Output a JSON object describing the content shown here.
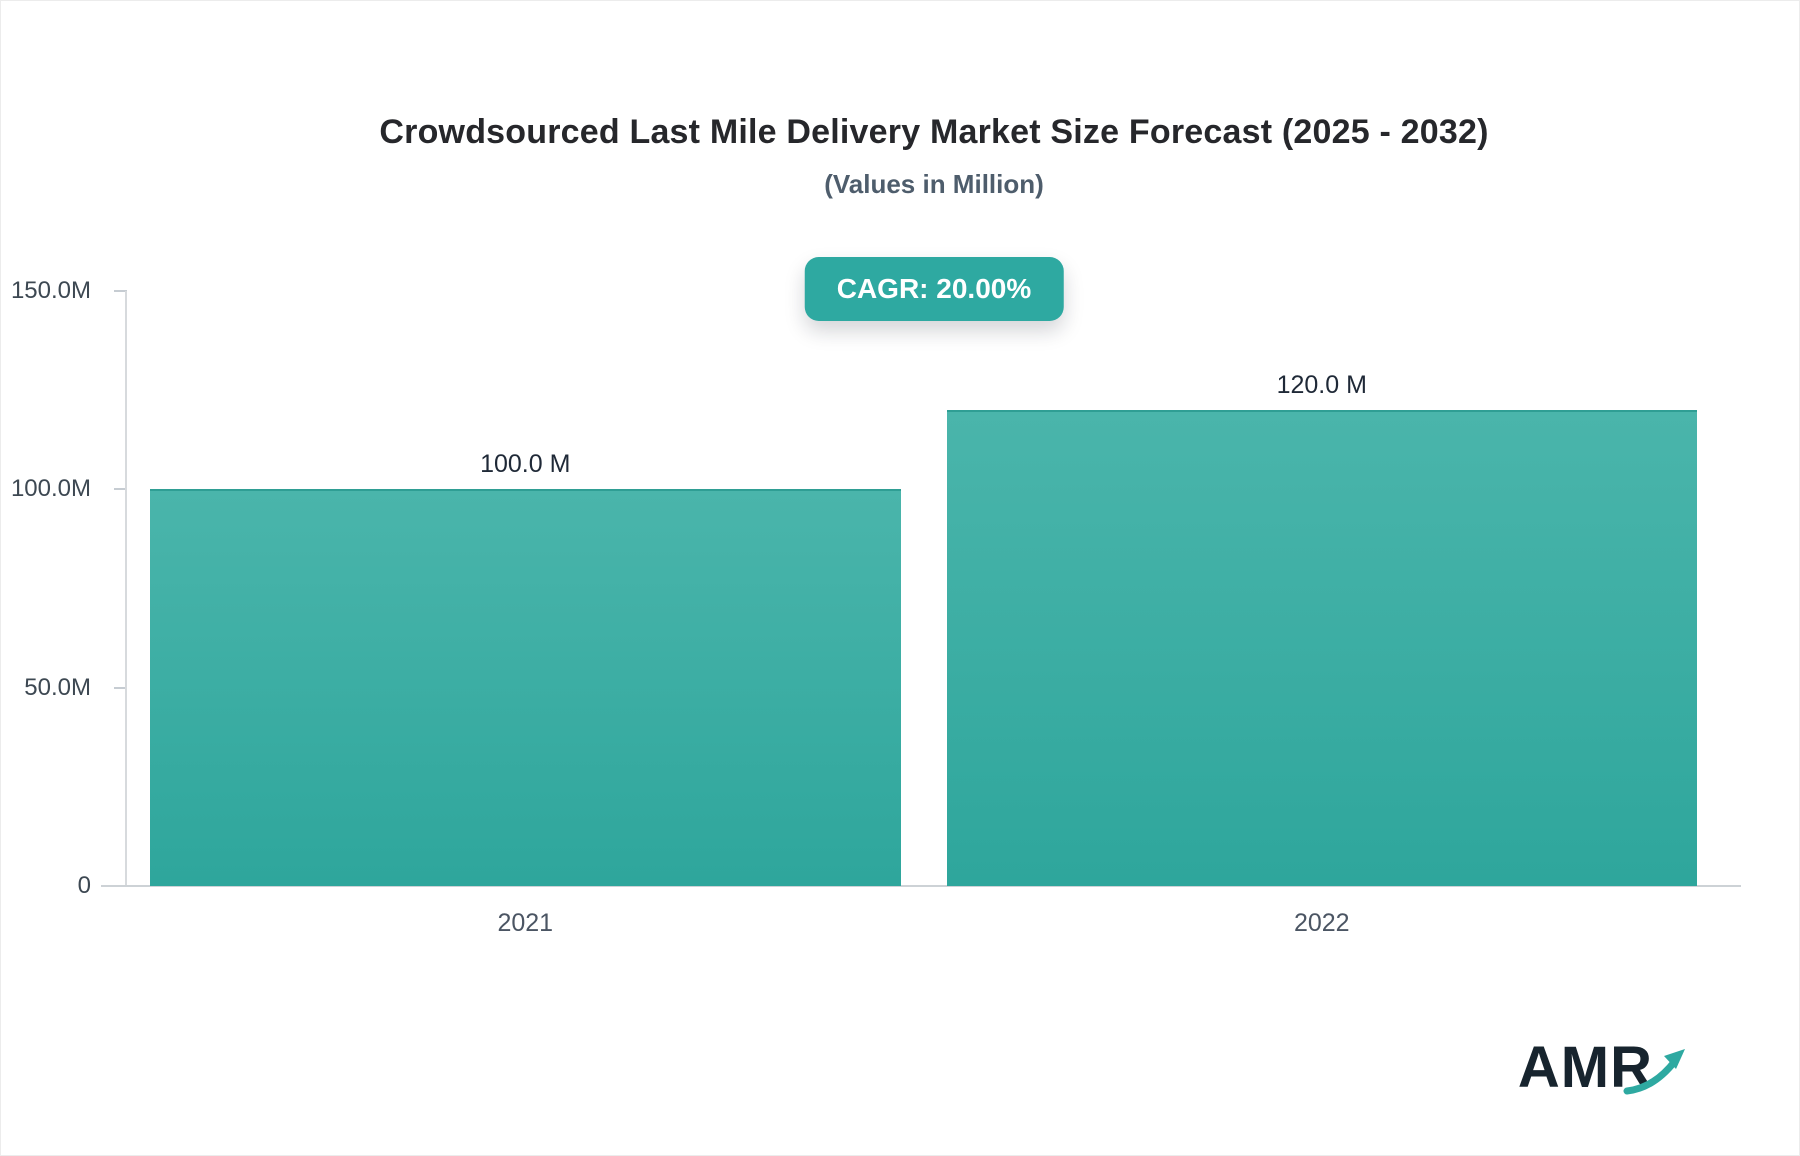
{
  "header": {
    "title": "Crowdsourced Last Mile Delivery Market Size Forecast (2025 - 2032)",
    "subtitle": "(Values in Million)",
    "cagr_badge": "CAGR: 20.00%"
  },
  "footer": {
    "logo_text": "AMR"
  },
  "colors": {
    "accent_teal": "#2ea9a1",
    "bar_gradient_top": "#4ab5ab",
    "bar_gradient_bottom": "#2ea69c",
    "title_text": "#26272b",
    "subtitle_text": "#4e5d6c",
    "axis_text": "#3d4852",
    "logo_text": "#17242e"
  },
  "chart_data": {
    "type": "bar",
    "title": "Crowdsourced Last Mile Delivery Market Size Forecast (2025 - 2032)",
    "subtitle": "(Values in Million)",
    "categories": [
      "2021",
      "2022"
    ],
    "values": [
      100.0,
      120.0
    ],
    "value_labels": [
      "100.0 M",
      "120.0 M"
    ],
    "units": "Million",
    "cagr": "20.00%",
    "xlabel": "",
    "ylabel": "",
    "ylim": [
      0,
      150
    ],
    "yticks": [
      {
        "value": 150,
        "label": "150.0M"
      },
      {
        "value": 100,
        "label": "100.0M"
      },
      {
        "value": 50,
        "label": "50.0M"
      },
      {
        "value": 0,
        "label": "0"
      }
    ],
    "grid": false,
    "legend_position": "none"
  }
}
